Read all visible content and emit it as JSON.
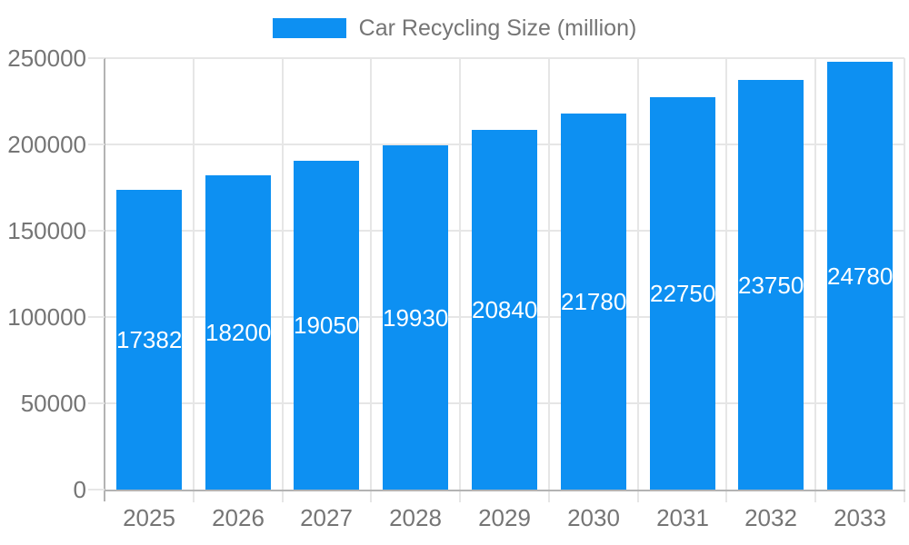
{
  "legend": {
    "label": "Car Recycling Size (million)",
    "position": "top"
  },
  "chart_data": {
    "type": "bar",
    "title": "Car Recycling Size (million)",
    "categories": [
      "2025",
      "2026",
      "2027",
      "2028",
      "2029",
      "2030",
      "2031",
      "2032",
      "2033"
    ],
    "series": [
      {
        "name": "Car Recycling Size (million)",
        "values": [
          173820,
          182000,
          190500,
          199300,
          208400,
          217800,
          227500,
          237500,
          247800
        ]
      }
    ],
    "xlabel": "",
    "ylabel": "",
    "ylim": [
      0,
      250000
    ],
    "yticks": [
      0,
      50000,
      100000,
      150000,
      200000,
      250000
    ],
    "ytick_labels": [
      "0",
      "50000",
      "100000",
      "150000",
      "200000",
      "250000"
    ],
    "grid": true,
    "legend_position": "top-center",
    "value_labels": "inside-center-white",
    "colors": {
      "bar": "#0d90f2",
      "grid": "#e6e6e6",
      "axis": "#b3b3b3",
      "text": "#757575",
      "value_label": "#ffffff",
      "background": "#ffffff"
    }
  }
}
